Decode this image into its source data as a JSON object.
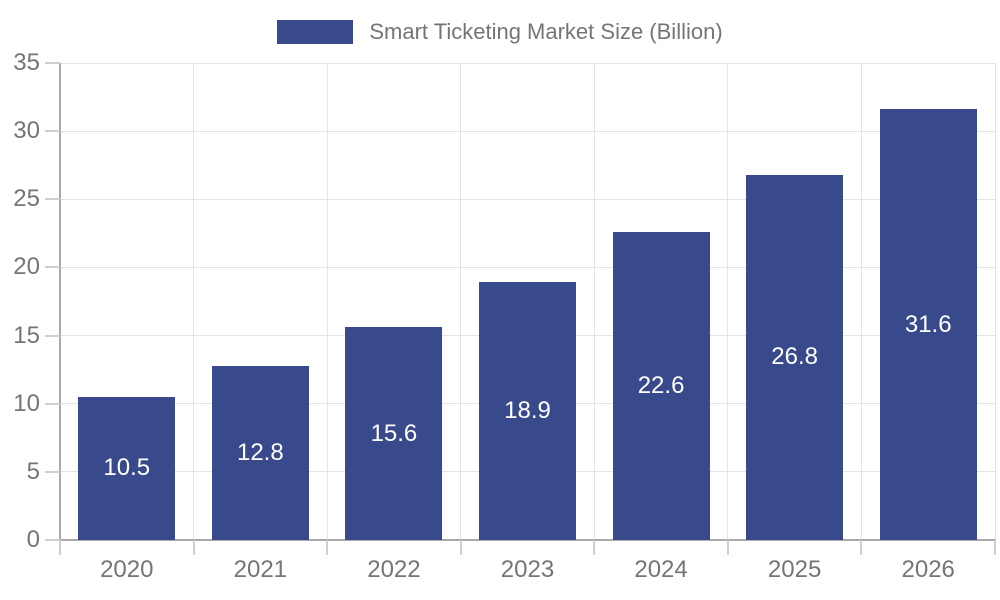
{
  "legend": {
    "label": "Smart Ticketing Market Size (Billion)"
  },
  "chart_data": {
    "type": "bar",
    "title": "Smart Ticketing Market Size (Billion)",
    "categories": [
      "2020",
      "2021",
      "2022",
      "2023",
      "2024",
      "2025",
      "2026"
    ],
    "values": [
      10.5,
      12.8,
      15.6,
      18.9,
      22.6,
      26.8,
      31.6
    ],
    "value_labels": [
      "10.5",
      "12.8",
      "15.6",
      "18.9",
      "22.6",
      "26.8",
      "31.6"
    ],
    "xlabel": "",
    "ylabel": "",
    "ylim": [
      0,
      35
    ],
    "yticks": [
      0,
      5,
      10,
      15,
      20,
      25,
      30,
      35
    ],
    "grid": true,
    "legend_position": "top-center",
    "value_label_position": "inside-center"
  },
  "colors": {
    "bar": "#384A8C",
    "grid_line": "#E4E4E4",
    "axis_line": "#AAAAAA",
    "tick_mark": "#CFCFCF",
    "axis_text": "#757575",
    "value_label_text": "#FFFFFF"
  }
}
